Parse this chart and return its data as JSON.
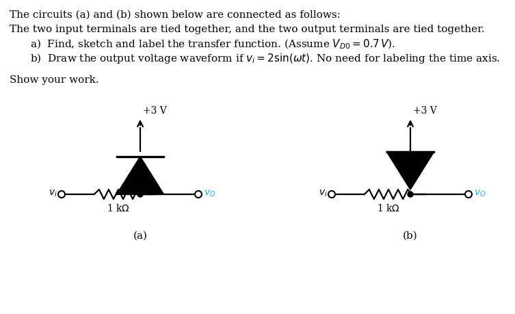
{
  "title_line1": "The circuits (a) and (b) shown below are connected as follows:",
  "title_line2": "The two input terminals are tied together, and the two output terminals are tied together.",
  "item_a": "a)  Find, sketch and label the transfer function. (Assume $V_{D0} = 0.7\\,V$).",
  "item_b": "b)  Draw the output voltage waveform if $v_i = 2\\sin(\\omega t)$. No need for labeling the time axis.",
  "show_work": "Show your work.",
  "bg_color": "#ffffff",
  "text_color": "#000000",
  "cyan_color": "#29ABE2",
  "font_size_main": 11.0,
  "font_size_small": 10.0,
  "font_size_label": 11.0
}
